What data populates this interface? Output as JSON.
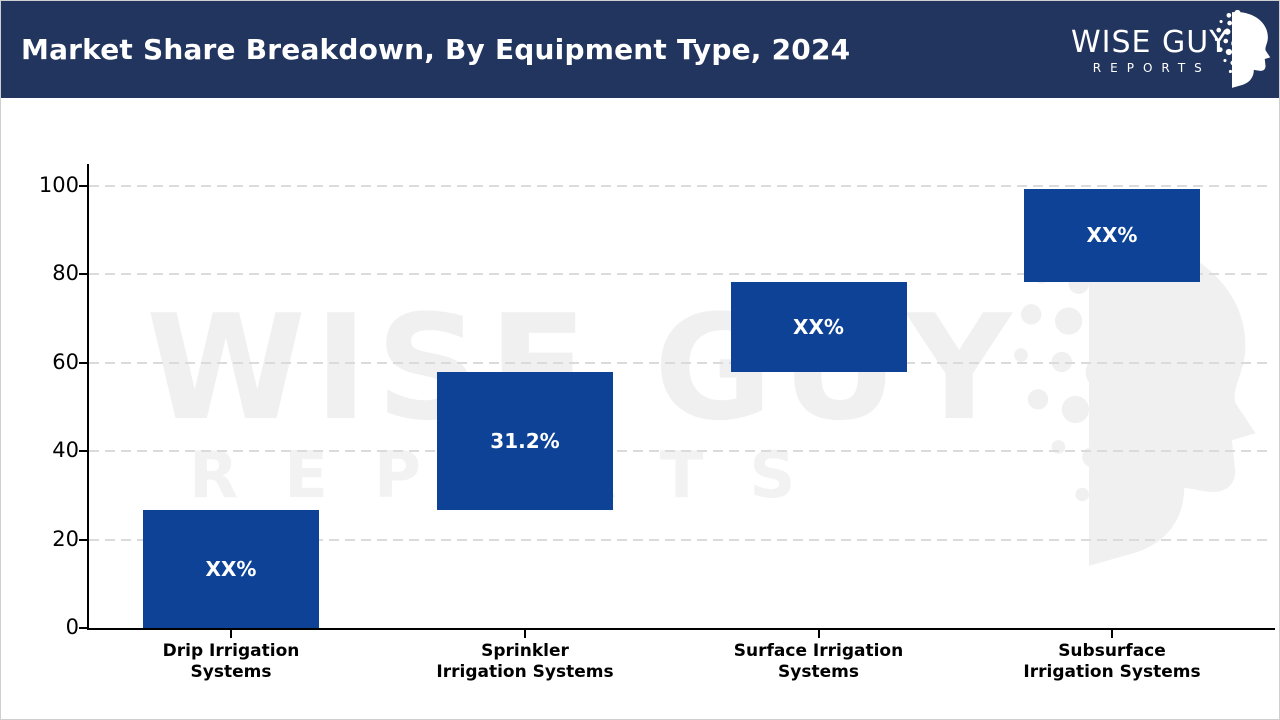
{
  "header": {
    "title": "Market Share Breakdown, By Equipment Type, 2024",
    "logo": {
      "line1": "WISE GUY",
      "line2": "REPORTS"
    }
  },
  "watermark": {
    "line1": "WISE GUY",
    "line2": "REPORTS"
  },
  "colors": {
    "header_bg": "#22355e",
    "bar": "#0d4296",
    "grid": "#dbdbdb",
    "watermark": "#f0f0f0",
    "title_text": "#ffffff",
    "axis_text": "#000000"
  },
  "chart_data": {
    "type": "bar",
    "variant": "floating-waterfall",
    "title": "Market Share Breakdown, By Equipment Type, 2024",
    "categories": [
      "Drip Irrigation|Systems",
      "Sprinkler|Irrigation Systems",
      "Surface Irrigation|Systems",
      "Subsurface|Irrigation Systems"
    ],
    "segments": [
      {
        "category": "Drip Irrigation Systems",
        "start": 0,
        "end": 26.8,
        "label": "XX%"
      },
      {
        "category": "Sprinkler Irrigation Systems",
        "start": 26.8,
        "end": 58.0,
        "label": "31.2%"
      },
      {
        "category": "Surface Irrigation Systems",
        "start": 58.0,
        "end": 78.2,
        "label": "XX%"
      },
      {
        "category": "Subsurface Irrigation Systems",
        "start": 78.2,
        "end": 99.4,
        "label": "XX%"
      }
    ],
    "yticks": [
      0,
      20,
      40,
      60,
      80,
      100
    ],
    "ylim": [
      0,
      105
    ],
    "xlabel": "",
    "ylabel": "",
    "grid": {
      "axis": "y",
      "style": "dashed",
      "color": "#dbdbdb"
    },
    "bar_color": "#0d4296",
    "bar_label_color": "#ffffff",
    "legend": null
  }
}
